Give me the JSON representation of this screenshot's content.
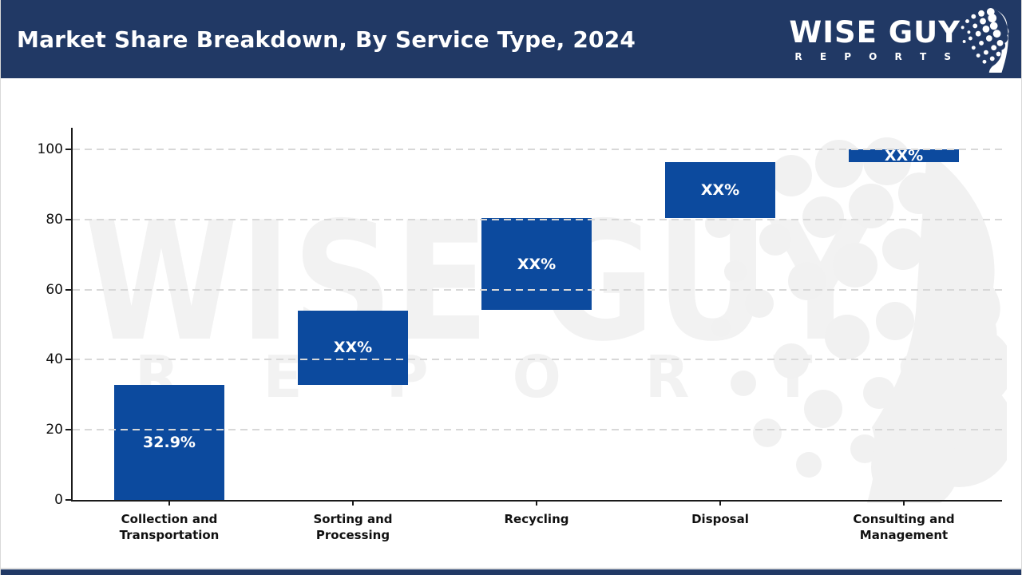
{
  "header": {
    "title": "Market Share Breakdown, By Service Type, 2024",
    "logo": {
      "line1": "WISE GUY",
      "line2": "R E P O R T S"
    }
  },
  "watermark": {
    "line1": "WISE GUY",
    "line2": "R E P O R T S"
  },
  "colors": {
    "header_bg": "#213965",
    "bar": "#0C4A9E",
    "grid": "#D8D8D8",
    "axis": "#1A1A1A",
    "watermark": "#F2F2F2",
    "bar_label": "#FFFFFF",
    "title_text": "#FFFFFF"
  },
  "chart_data": {
    "type": "bar",
    "subtype": "waterfall-stacked",
    "title": "Market Share Breakdown, By Service Type, 2024",
    "xlabel": "",
    "ylabel": "",
    "ylim": [
      0,
      100
    ],
    "yticks": [
      0,
      20,
      40,
      60,
      80,
      100
    ],
    "grid": "horizontal-dashed, drawn over bars",
    "legend": "none",
    "categories": [
      "Collection and Transportation",
      "Sorting and Processing",
      "Recycling",
      "Disposal",
      "Consulting and Management"
    ],
    "segments": [
      {
        "category_lines": [
          "Collection and",
          "Transportation"
        ],
        "start": 0,
        "end": 32.9,
        "label": "32.9%"
      },
      {
        "category_lines": [
          "Sorting and",
          "Processing"
        ],
        "start": 32.9,
        "end": 54.1,
        "label": "XX%"
      },
      {
        "category_lines": [
          "Recycling"
        ],
        "start": 54.1,
        "end": 80.3,
        "label": "XX%"
      },
      {
        "category_lines": [
          "Disposal"
        ],
        "start": 80.3,
        "end": 96.4,
        "label": "XX%"
      },
      {
        "category_lines": [
          "Consulting and",
          "Management"
        ],
        "start": 96.4,
        "end": 100,
        "label": "XX%"
      }
    ]
  }
}
